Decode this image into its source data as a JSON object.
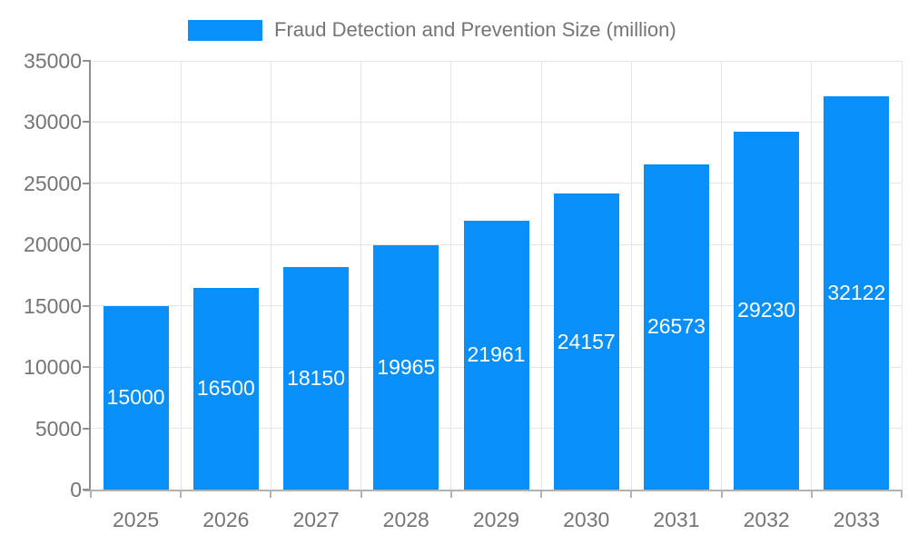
{
  "chart_data": {
    "type": "bar",
    "legend_label": "Fraud Detection and Prevention Size (million)",
    "categories": [
      "2025",
      "2026",
      "2027",
      "2028",
      "2029",
      "2030",
      "2031",
      "2032",
      "2033"
    ],
    "values": [
      15000,
      16500,
      18150,
      19965,
      21961,
      24157,
      26573,
      29230,
      32122
    ],
    "ytick_labels": [
      "0",
      "5000",
      "10000",
      "15000",
      "20000",
      "25000",
      "30000",
      "35000"
    ],
    "ylim": [
      0,
      35000
    ],
    "ytick_step": 5000,
    "grid": true,
    "legend_position": "top",
    "data_labels": "inside-center",
    "colors": {
      "bar": "#0890f8",
      "bar_label_text": "#ffffff",
      "axis_text": "#757575",
      "gridline": "#e6e6e6",
      "axis_line": "#8f8f8f",
      "baseline": "#b3b3b3"
    }
  }
}
